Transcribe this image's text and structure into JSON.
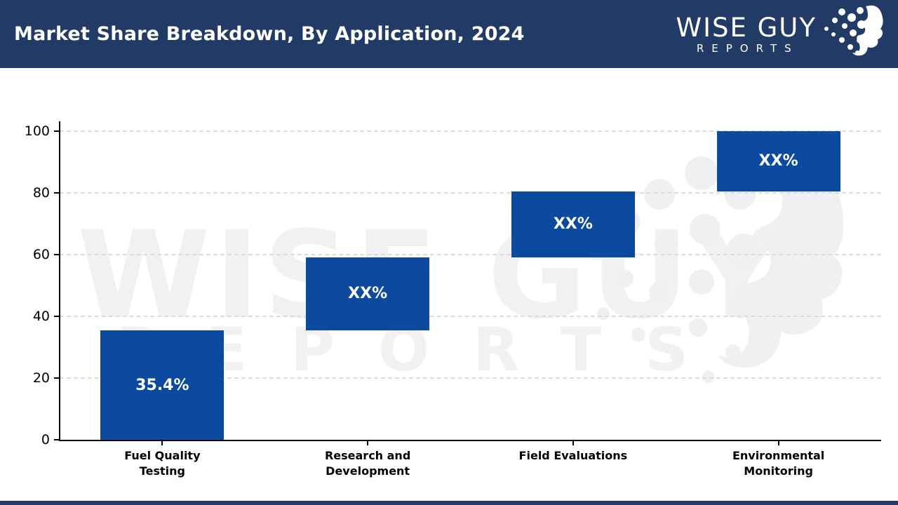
{
  "header": {
    "title": "Market Share Breakdown, By Application, 2024",
    "bg_color": "#213a66",
    "logo": {
      "line1": "WISE GUY",
      "line2": "REPORTS"
    }
  },
  "watermark": {
    "line1": "WISE GUY",
    "line2": "REPORTS",
    "color": "#f1f1f4"
  },
  "chart_data": {
    "type": "bar",
    "subtype": "waterfall",
    "title": "Market Share Breakdown, By Application, 2024",
    "categories": [
      "Fuel Quality Testing",
      "Research and Development",
      "Field Evaluations",
      "Environmental Monitoring"
    ],
    "category_label_lines": [
      [
        "Fuel Quality",
        "Testing"
      ],
      [
        "Research and",
        "Development"
      ],
      [
        "Field Evaluations"
      ],
      [
        "Environmental",
        "Monitoring"
      ]
    ],
    "series": [
      {
        "name": "Market Share",
        "segments": [
          {
            "category": "Fuel Quality Testing",
            "start": 0,
            "end": 35.4,
            "label": "35.4%"
          },
          {
            "category": "Research and Development",
            "start": 35.4,
            "end": 59.2,
            "label": "XX%"
          },
          {
            "category": "Field Evaluations",
            "start": 59.2,
            "end": 80.5,
            "label": "XX%"
          },
          {
            "category": "Environmental Monitoring",
            "start": 80.5,
            "end": 100,
            "label": "XX%"
          }
        ]
      }
    ],
    "ylim": [
      0,
      100
    ],
    "yticks": [
      0,
      20,
      40,
      60,
      80,
      100
    ],
    "xlabel": "",
    "ylabel": "",
    "grid": "horizontal-dashed",
    "legend": "none",
    "bar_color": "#0b4a9e",
    "bar_label_color": "#ffffff",
    "gridline_color": "#dcdcdc",
    "axis_color": "#000000"
  }
}
